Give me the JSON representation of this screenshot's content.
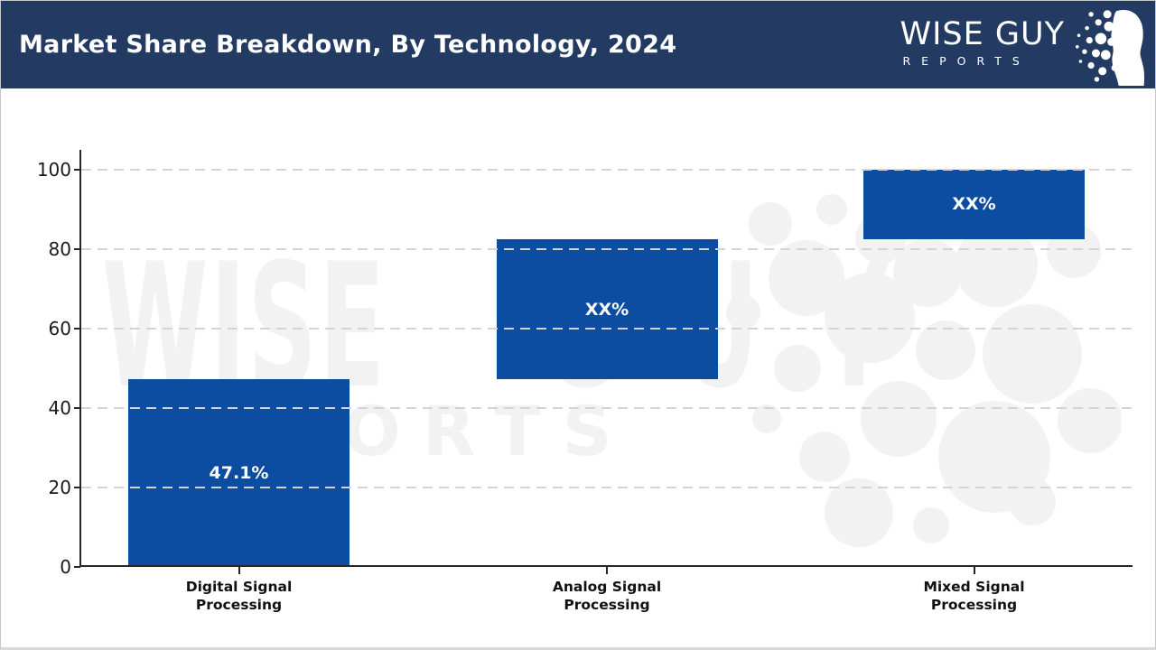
{
  "header": {
    "title": "Market Share Breakdown, By Technology, 2024",
    "logo": {
      "line1": "WISE GUY",
      "line2": "REPORTS"
    }
  },
  "watermark": {
    "word1": "WISE",
    "word2": "GUY",
    "line2": "REPORTS"
  },
  "colors": {
    "header_bg": "#233a63",
    "bar_fill": "#0c4da2",
    "bar_label": "#ffffff",
    "gridline": "#d4d4d4",
    "axis": "#262626",
    "watermark": "#f2f2f2"
  },
  "chart_data": {
    "type": "bar",
    "subtype": "stacked-waterfall",
    "title": "Market Share Breakdown, By Technology, 2024",
    "xlabel": "",
    "ylabel": "",
    "ylim": [
      0,
      100
    ],
    "yticks": [
      0,
      20,
      40,
      60,
      80,
      100
    ],
    "grid": true,
    "grid_style": "dashed",
    "legend": false,
    "categories": [
      "Digital Signal\nProcessing",
      "Analog Signal\nProcessing",
      "Mixed Signal\nProcessing"
    ],
    "segments": [
      {
        "category": "Digital Signal Processing",
        "start": 0,
        "end": 47.1,
        "label": "47.1%"
      },
      {
        "category": "Analog Signal Processing",
        "start": 47.1,
        "end": 82.4,
        "label": "XX%"
      },
      {
        "category": "Mixed Signal Processing",
        "start": 82.4,
        "end": 100,
        "label": "XX%"
      }
    ]
  }
}
